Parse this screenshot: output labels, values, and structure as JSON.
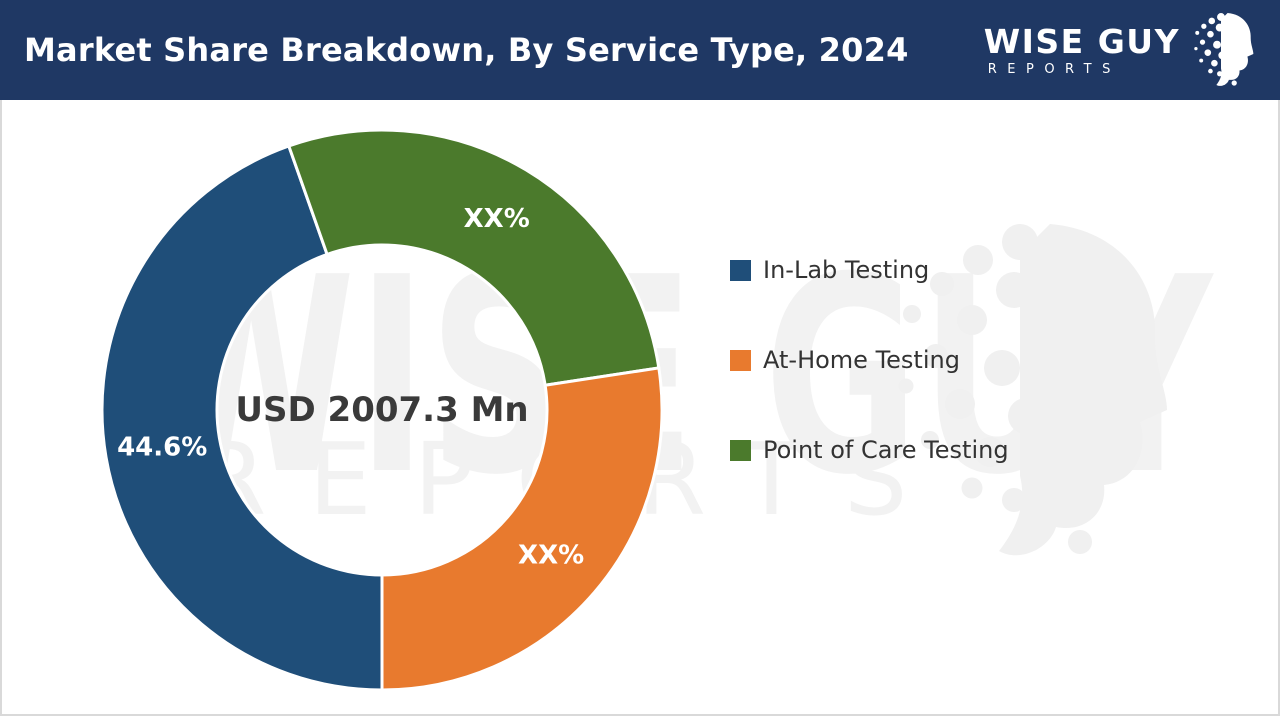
{
  "header": {
    "title": "Market Share Breakdown, By Service Type, 2024",
    "brand": {
      "name": "WISE GUY",
      "sub": "REPORTS"
    }
  },
  "watermark": {
    "main": "WISE GUY",
    "sub": "REPORTS"
  },
  "colors": {
    "header_background": "#1f3864",
    "content_border": "#d9d9d9",
    "center_text": "#3a3a3a",
    "legend_text": "#333333",
    "slice_label_text": "#ffffff",
    "watermark_gray": "#f2f2f2"
  },
  "chart_data": {
    "type": "pie",
    "subtype": "donut",
    "title": "Market Share Breakdown, By Service Type, 2024",
    "center_label": "USD 2007.3 Mn",
    "legend_position": "right",
    "start_angle_deg": 180,
    "draw_order": [
      0,
      2,
      1
    ],
    "slices": [
      {
        "name": "In-Lab Testing",
        "value_pct": 44.6,
        "display_label": "44.6%",
        "color": "#1f4e79"
      },
      {
        "name": "At-Home Testing",
        "value_pct": 27.4,
        "display_label": "XX%",
        "color": "#e87a2e"
      },
      {
        "name": "Point of Care Testing",
        "value_pct": 28.0,
        "display_label": "XX%",
        "color": "#4b7a2c"
      }
    ]
  }
}
